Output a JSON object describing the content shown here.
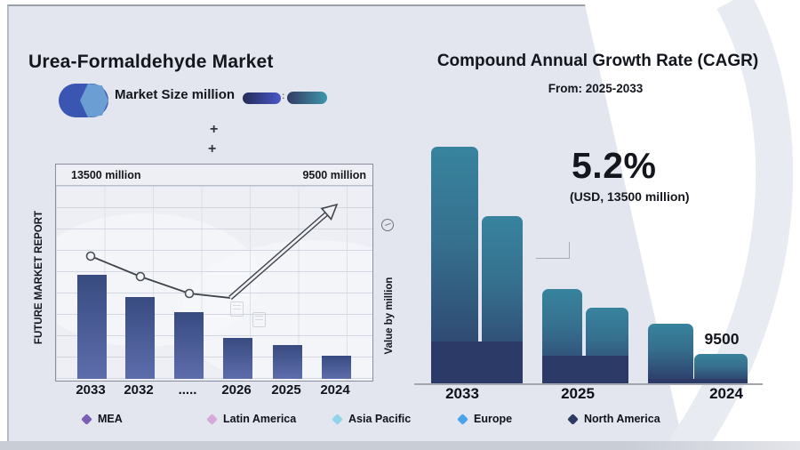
{
  "left_panel": {
    "title": "Urea-Formaldehyde Market",
    "legend_label": "Market Size million",
    "ratio_colon": ":",
    "plus_mark": "+",
    "watermark_vertical": "FUTURE MARKET REPORT",
    "axis_vertical_right": "Value by million",
    "chart": {
      "top_left_value": "13500 million",
      "top_right_value": "9500 million"
    }
  },
  "right_panel": {
    "title": "Compound Annual Growth Rate (CAGR)",
    "subtitle": "From: 2025-2033",
    "cagr": "5.2%",
    "cagr_note": "(USD, 13500 million)",
    "value_callout": "9500"
  },
  "legend": {
    "items": [
      {
        "label": "MEA",
        "color": "#7a5fb5"
      },
      {
        "label": "Latin America",
        "color": "#d7a9da"
      },
      {
        "label": "Asia Pacific",
        "color": "#8fd4ea"
      },
      {
        "label": "Europe",
        "color": "#49a3e8"
      },
      {
        "label": "North America",
        "color": "#2e3a66"
      }
    ]
  },
  "chart_data": [
    {
      "type": "bar",
      "name": "market-size-by-year",
      "title": "Urea-Formaldehyde Market",
      "series_label": "Market Size million",
      "categories": [
        "2033",
        "2032",
        ".....",
        "2026",
        "2025",
        "2024"
      ],
      "relative_bar_heights": [
        1.0,
        0.786,
        0.641,
        0.393,
        0.325,
        0.222
      ],
      "labeled_values": {
        "2033": "13500 million",
        "2024": "9500 million"
      },
      "ylabel_left": "FUTURE MARKET REPORT",
      "ylabel_right": "Value by million",
      "grid": true,
      "annotations": [
        "declining marker line from 2033 to 2026 then upward trend arrow"
      ]
    },
    {
      "type": "bar",
      "name": "cagr-comparison",
      "title": "Compound Annual Growth Rate (CAGR)",
      "subtitle": "From: 2025-2033",
      "cagr": "5.2%",
      "detail": "(USD, 13500 million)",
      "categories": [
        "2033",
        "2025",
        "2024"
      ],
      "series": [
        {
          "name": "series-1",
          "relative_heights": [
            1.0,
            0.401,
            0.255
          ]
        },
        {
          "name": "series-2",
          "relative_heights": [
            0.708,
            0.322,
            0.127
          ]
        }
      ],
      "labeled_values": {
        "2024": "9500"
      },
      "grid": false
    }
  ],
  "colors": {
    "panel_bg": "#e3e6ee",
    "left_bar_top": "#384b80",
    "left_bar_bottom": "#5d6dac",
    "right_bar_top": "#37839d",
    "right_bar_bottom": "#2c3a68",
    "text": "#14161d"
  }
}
